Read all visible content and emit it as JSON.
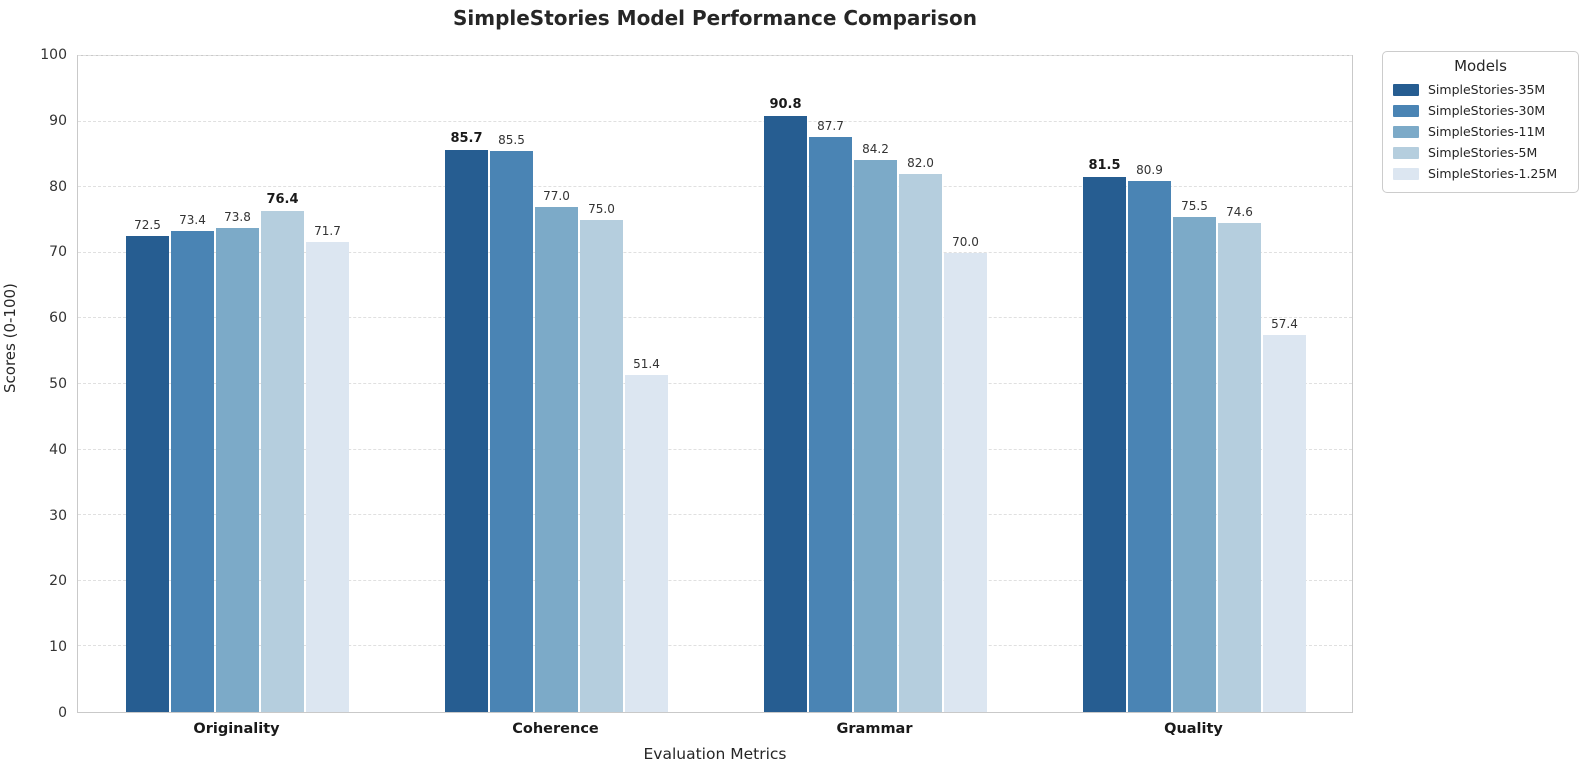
{
  "chart_data": {
    "type": "bar",
    "title": "SimpleStories Model Performance Comparison",
    "xlabel": "Evaluation Metrics",
    "ylabel": "Scores (0-100)",
    "categories": [
      "Originality",
      "Coherence",
      "Grammar",
      "Quality"
    ],
    "series": [
      {
        "name": "SimpleStories-35M",
        "color": "#265d91",
        "values": [
          72.5,
          85.7,
          90.8,
          81.5
        ]
      },
      {
        "name": "SimpleStories-30M",
        "color": "#4a84b4",
        "values": [
          73.4,
          85.5,
          87.7,
          80.9
        ]
      },
      {
        "name": "SimpleStories-11M",
        "color": "#7caac8",
        "values": [
          73.8,
          77.0,
          84.2,
          75.5
        ]
      },
      {
        "name": "SimpleStories-5M",
        "color": "#b5cede",
        "values": [
          76.4,
          75.0,
          82.0,
          74.6
        ]
      },
      {
        "name": "SimpleStories-1.25M",
        "color": "#dce6f1",
        "values": [
          71.7,
          51.4,
          70.0,
          57.4
        ]
      }
    ],
    "ylim": [
      0,
      100
    ],
    "yticks": [
      0,
      10,
      20,
      30,
      40,
      50,
      60,
      70,
      80,
      90,
      100
    ],
    "value_label_decimals": 1,
    "bold_max_per_category": true,
    "grid": "horizontal-dashed",
    "legend": {
      "title": "Models",
      "position": "upper-right-outside"
    },
    "colors": {
      "grid": "#e0e0e0",
      "spine": "#c9c9c9",
      "text": "#262626",
      "value_label": "#333333"
    }
  }
}
